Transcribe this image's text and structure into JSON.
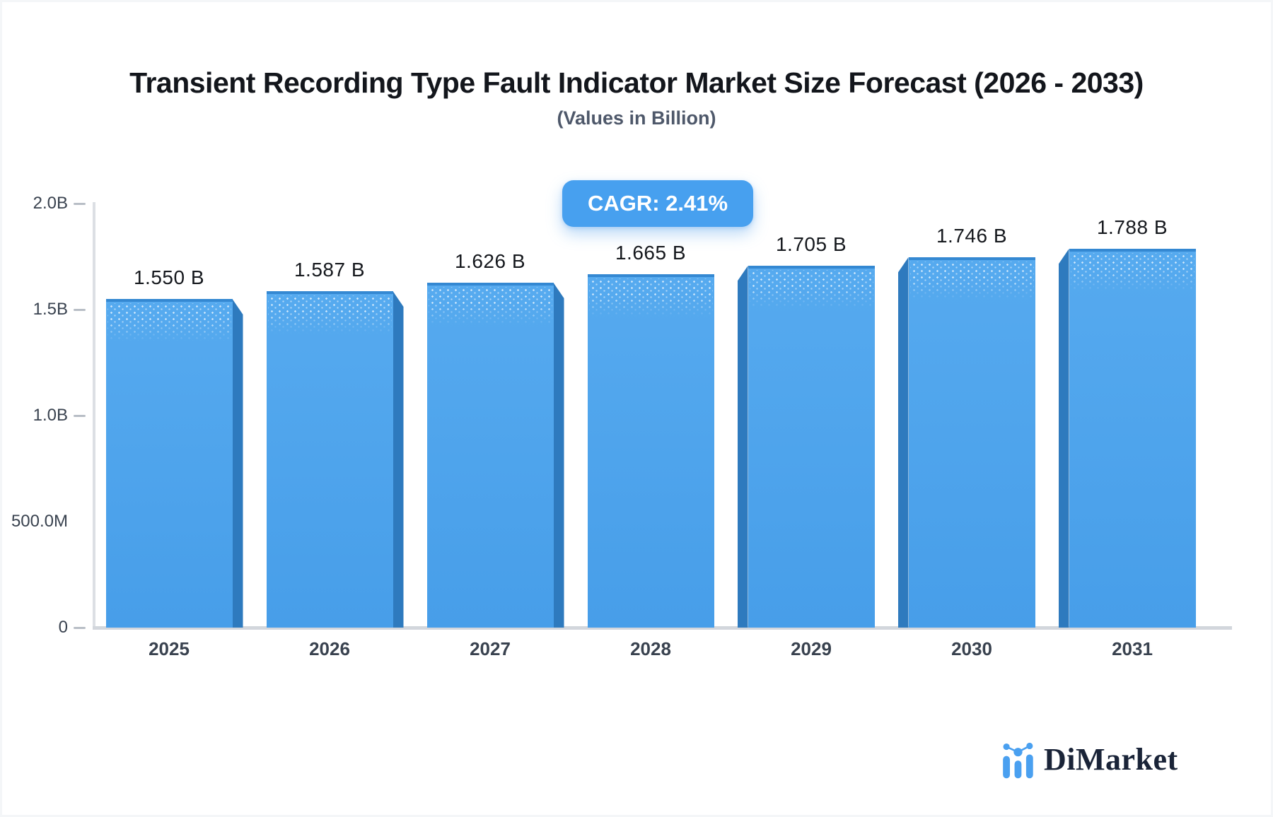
{
  "frame": {
    "background": "#ffffff",
    "edge_color": "#f4f6f8"
  },
  "chart_data": {
    "type": "bar",
    "title": "Transient Recording Type Fault Indicator Market Size Forecast (2026 - 2033)",
    "subtitle": "(Values in Billion)",
    "categories": [
      "2025",
      "2026",
      "2027",
      "2028",
      "2029",
      "2030",
      "2031"
    ],
    "values": [
      1.55,
      1.587,
      1.626,
      1.665,
      1.705,
      1.746,
      1.788
    ],
    "value_labels": [
      "1.550 B",
      "1.587 B",
      "1.626 B",
      "1.665 B",
      "1.705 B",
      "1.746 B",
      "1.788 B"
    ],
    "xlabel": "",
    "ylabel": "",
    "ylim": [
      0,
      2.0
    ],
    "yticks": [
      {
        "value": 0,
        "label": "0",
        "dash": true
      },
      {
        "value": 0.5,
        "label": "500.0M",
        "dash": false
      },
      {
        "value": 1.0,
        "label": "1.0B",
        "dash": true
      },
      {
        "value": 1.5,
        "label": "1.5B",
        "dash": true
      },
      {
        "value": 2.0,
        "label": "2.0B",
        "dash": true
      }
    ],
    "grid": false,
    "legend": null,
    "annotation": "CAGR: 2.41%",
    "bar_face_color_top": "#56aaef",
    "bar_face_color_bottom": "#479ee9",
    "bar_side_color": "#2e7abe",
    "bar_top_edge_color": "#3488d2",
    "axis_line_color": "#d5d9de",
    "tick_text_color": "#39424f"
  },
  "badge": {
    "label": "CAGR: 2.41%",
    "bg_color": "#47a0ef",
    "text_color": "#ffffff"
  },
  "branding": {
    "name": "DiMarket",
    "icon": "mini-bar-chart-icon",
    "icon_color": "#4aa0f0",
    "text_color": "#1a2438"
  }
}
